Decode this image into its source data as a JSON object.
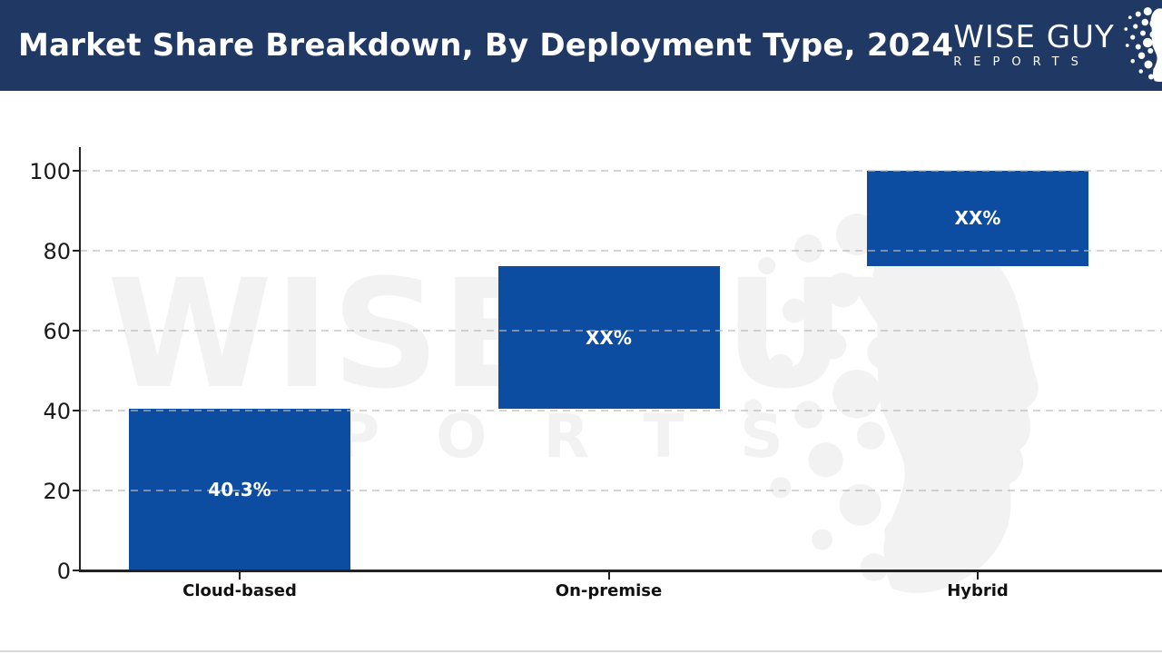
{
  "header": {
    "title": "Market Share Breakdown, By Deployment Type, 2024",
    "logo": {
      "line1": "WISE GUY",
      "line2": "REPORTS"
    }
  },
  "watermark": {
    "line1": "WISE GUY",
    "line2": "REPORTS"
  },
  "colors": {
    "header_bg": "#1F3864",
    "bar": "#0C4DA2",
    "bar_label_text": "#FFFFFF",
    "watermark": "#F2F2F2",
    "gridline": "#BDBDBD",
    "axis": "#222222"
  },
  "chart_data": {
    "type": "bar",
    "subtype": "waterfall",
    "title": "Market Share Breakdown, By Deployment Type, 2024",
    "categories": [
      "Cloud-based",
      "On-premise",
      "Hybrid"
    ],
    "segments": [
      {
        "category": "Cloud-based",
        "start": 0,
        "end": 40.3,
        "label": "40.3%"
      },
      {
        "category": "On-premise",
        "start": 40.3,
        "end": 76,
        "label": "XX%"
      },
      {
        "category": "Hybrid",
        "start": 76,
        "end": 100,
        "label": "XX%"
      }
    ],
    "yticks": [
      0,
      20,
      40,
      60,
      80,
      100
    ],
    "ylim": [
      0,
      105
    ],
    "xlabel": "",
    "ylabel": "",
    "grid": "horizontal-dashed",
    "legend": "none"
  }
}
